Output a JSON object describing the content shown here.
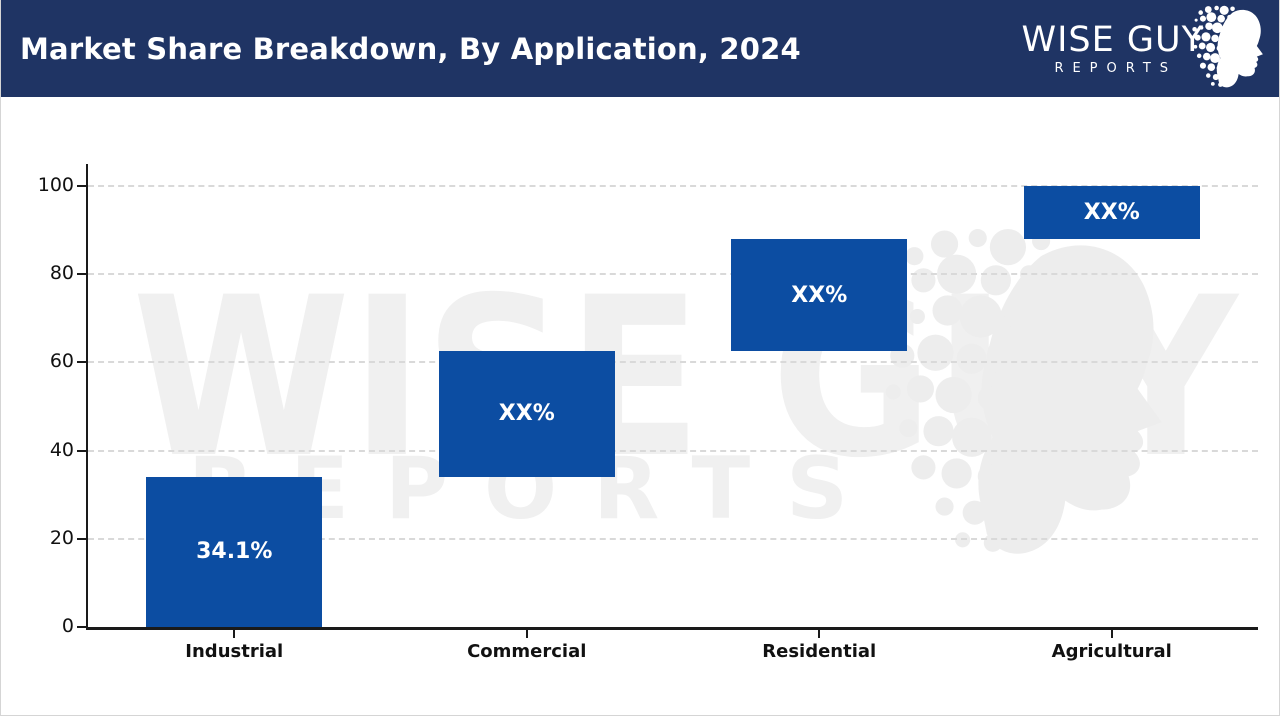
{
  "header": {
    "title": "Market Share Breakdown, By Application, 2024",
    "logo": {
      "brand": "WISE GUY",
      "brand_sub": "REPORTS"
    }
  },
  "watermark": {
    "brand": "WISE GUY",
    "brand_sub": "REPORTS"
  },
  "colors": {
    "header_bg": "#1f3464",
    "bar": "#0c4da2",
    "axis": "#1a1a1a",
    "gridline": "#d9d9d9",
    "bar_label": "#ffffff",
    "watermark": "#f0f0f0",
    "watermark_head": "#ededed"
  },
  "chart_data": {
    "type": "bar",
    "variant": "floating-segment-waterfall",
    "title": "Market Share Breakdown, By Application, 2024",
    "categories": [
      "Industrial",
      "Commercial",
      "Residential",
      "Agricultural"
    ],
    "bars": [
      {
        "category": "Industrial",
        "from": 0,
        "to": 34.1,
        "label": "34.1%"
      },
      {
        "category": "Commercial",
        "from": 34.1,
        "to": 62.6,
        "label": "XX%"
      },
      {
        "category": "Residential",
        "from": 62.6,
        "to": 87.9,
        "label": "XX%"
      },
      {
        "category": "Agricultural",
        "from": 87.9,
        "to": 100,
        "label": "XX%"
      }
    ],
    "yticks": [
      0,
      20,
      40,
      60,
      80,
      100
    ],
    "ylim": [
      0,
      105
    ],
    "xlabel": "",
    "ylabel": "",
    "grid": "horizontal-dashed",
    "legend": "none",
    "bar_color": "#0c4da2"
  }
}
